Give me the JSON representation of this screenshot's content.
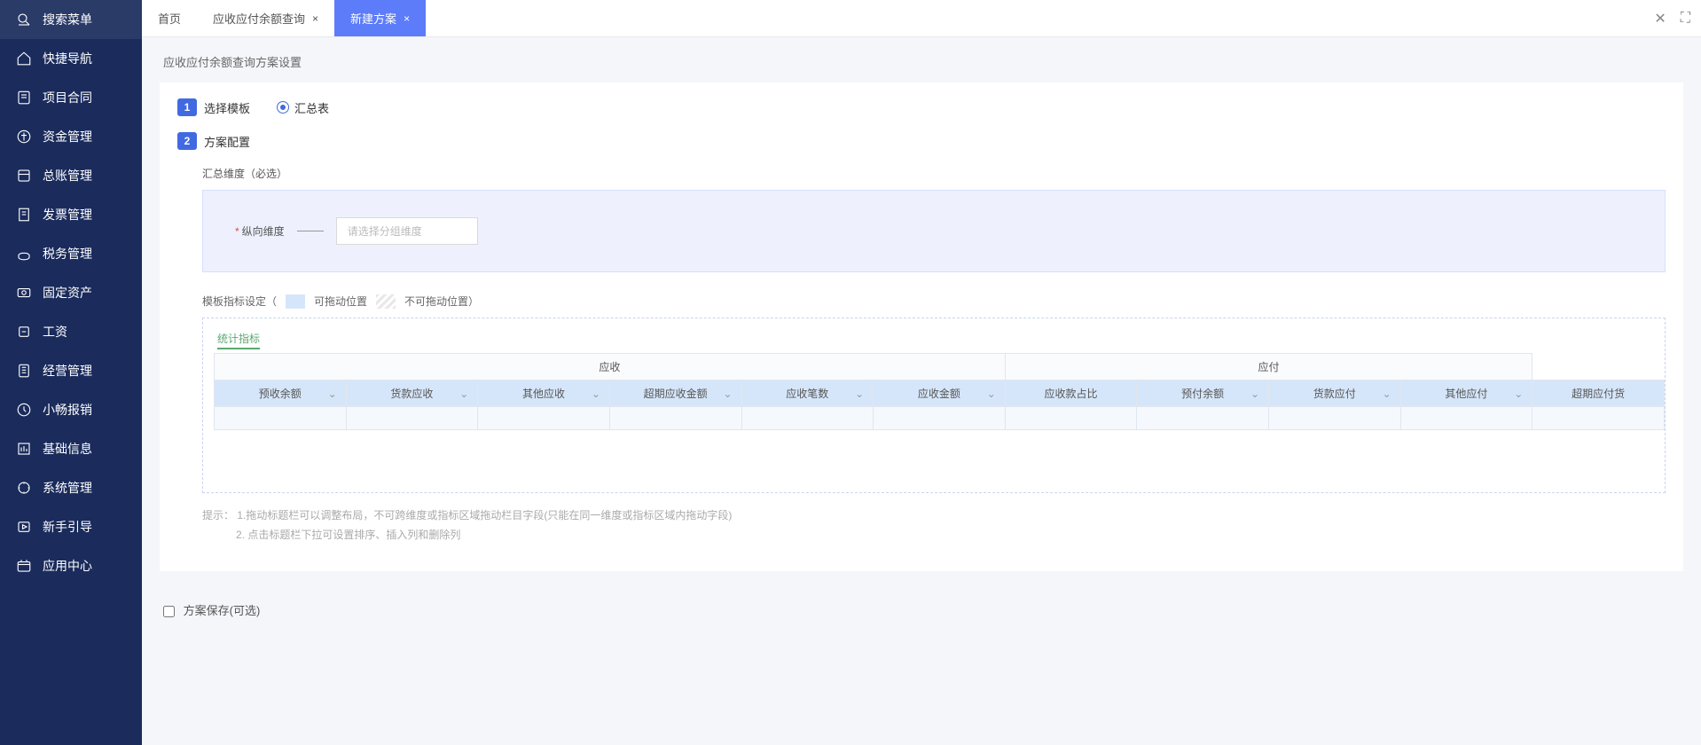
{
  "sidebar": {
    "items": [
      {
        "label": "搜索菜单",
        "icon": "search"
      },
      {
        "label": "快捷导航",
        "icon": "home"
      },
      {
        "label": "项目合同",
        "icon": "project"
      },
      {
        "label": "资金管理",
        "icon": "fund"
      },
      {
        "label": "总账管理",
        "icon": "ledger"
      },
      {
        "label": "发票管理",
        "icon": "invoice"
      },
      {
        "label": "税务管理",
        "icon": "tax"
      },
      {
        "label": "固定资产",
        "icon": "asset"
      },
      {
        "label": "工资",
        "icon": "salary"
      },
      {
        "label": "经营管理",
        "icon": "manage"
      },
      {
        "label": "小畅报销",
        "icon": "reimburse"
      },
      {
        "label": "基础信息",
        "icon": "info"
      },
      {
        "label": "系统管理",
        "icon": "system"
      },
      {
        "label": "新手引导",
        "icon": "guide"
      },
      {
        "label": "应用中心",
        "icon": "apps"
      }
    ]
  },
  "tabs": [
    {
      "label": "首页",
      "closable": false,
      "active": false
    },
    {
      "label": "应收应付余额查询",
      "closable": true,
      "active": false
    },
    {
      "label": "新建方案",
      "closable": true,
      "active": true
    }
  ],
  "page": {
    "title": "应收应付余额查询方案设置"
  },
  "steps": {
    "s1": {
      "num": "1",
      "title": "选择模板",
      "radio_label": "汇总表"
    },
    "s2": {
      "num": "2",
      "title": "方案配置"
    }
  },
  "config": {
    "dim_section_label": "汇总维度（必选）",
    "dim_row_label": "纵向维度",
    "dim_placeholder": "请选择分组维度",
    "legend_label": "模板指标设定（",
    "legend_drag": "可拖动位置",
    "legend_nodrag": "不可拖动位置）",
    "stat_label": "统计指标"
  },
  "table": {
    "groups": [
      {
        "label": "应收",
        "span": 6
      },
      {
        "label": "应付",
        "span": 4
      }
    ],
    "columns": [
      "预收余额",
      "货款应收",
      "其他应收",
      "超期应收金额",
      "应收笔数",
      "应收金额",
      "应收款占比",
      "预付余额",
      "货款应付",
      "其他应付",
      "超期应付货"
    ]
  },
  "hints": {
    "prefix": "提示：",
    "l1": "1.拖动标题栏可以调整布局，不可跨维度或指标区域拖动栏目字段(只能在同一维度或指标区域内拖动字段)",
    "l2": "2. 点击标题栏下拉可设置排序、插入列和删除列"
  },
  "save": {
    "label": "方案保存(可选)"
  }
}
